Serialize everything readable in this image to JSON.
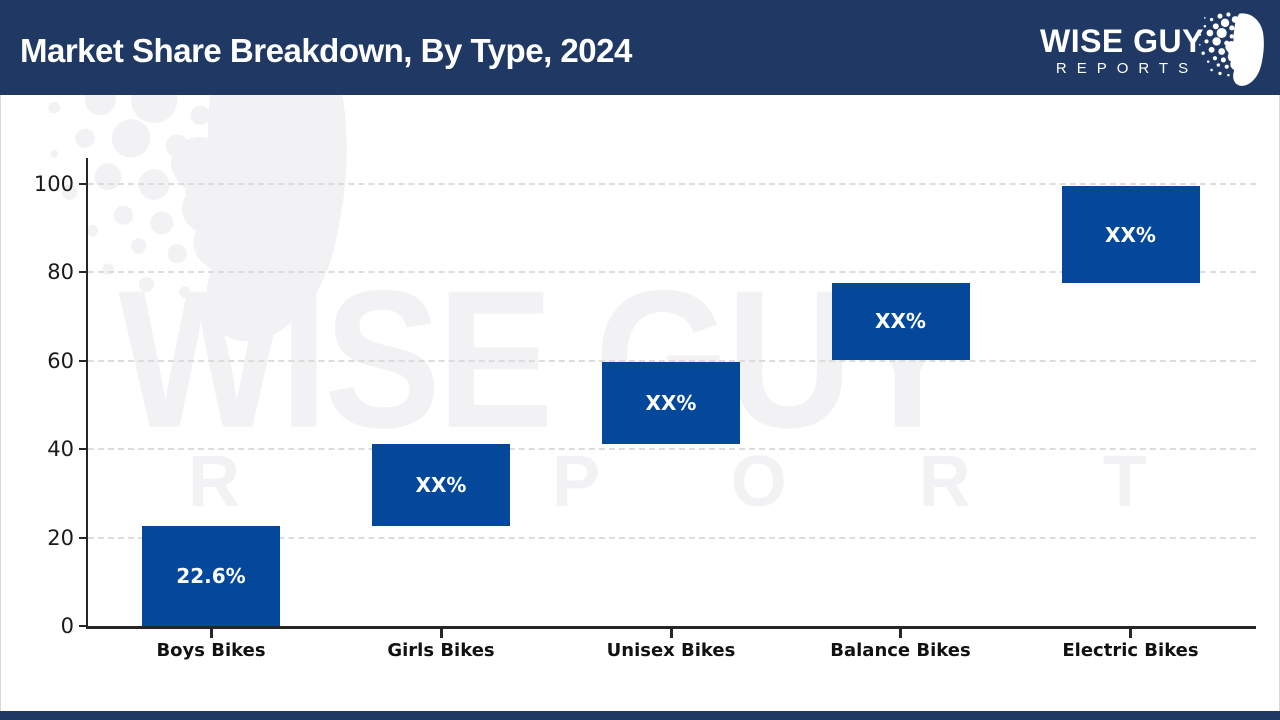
{
  "header": {
    "title": "Market Share Breakdown, By Type, 2024",
    "bg": "#1f3864",
    "logo": {
      "line1": "WISE GUY",
      "line2": "REPORTS"
    }
  },
  "watermark": {
    "line1": "WISE GUY",
    "line2": "R E P O R T S"
  },
  "footer": {
    "bg": "#1f3864"
  },
  "chart_data": {
    "type": "bar",
    "subtype": "waterfall",
    "title": "Market Share Breakdown, By Type, 2024",
    "xlabel": "",
    "ylabel": "",
    "categories": [
      "Boys Bikes",
      "Girls Bikes",
      "Unisex Bikes",
      "Balance Bikes",
      "Electric Bikes"
    ],
    "segments": [
      {
        "category": "Boys Bikes",
        "start": 0,
        "end": 22.6,
        "label": "22.6%"
      },
      {
        "category": "Girls Bikes",
        "start": 22.6,
        "end": 41.2,
        "label": "XX%"
      },
      {
        "category": "Unisex Bikes",
        "start": 41.2,
        "end": 59.8,
        "label": "XX%"
      },
      {
        "category": "Balance Bikes",
        "start": 60.2,
        "end": 77.6,
        "label": "XX%"
      },
      {
        "category": "Electric Bikes",
        "start": 77.6,
        "end": 99.5,
        "label": "XX%"
      }
    ],
    "yticks": [
      0,
      20,
      40,
      60,
      80,
      100
    ],
    "ylim": [
      0,
      106
    ],
    "grid": "horizontal-dashed",
    "legend": "none",
    "bar_color": "#04489c",
    "bar_label_color": "#ffffff",
    "axis_color": "#262626",
    "gridline_color": "#dcdcdc"
  }
}
